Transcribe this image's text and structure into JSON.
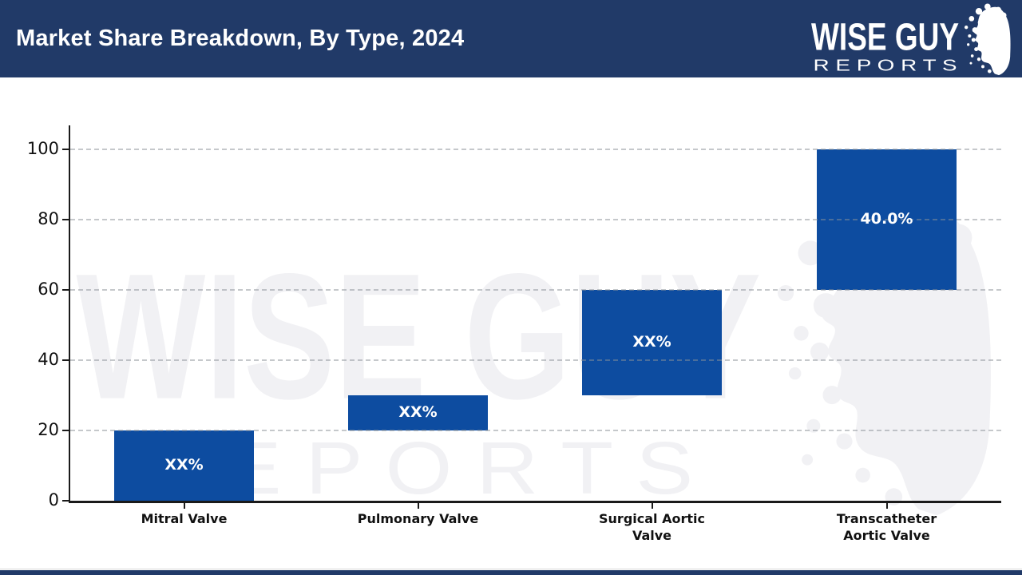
{
  "header": {
    "title": "Market Share Breakdown, By Type, 2024",
    "brand": {
      "line1": "WISE GUY",
      "line2": "R E P O R T S"
    }
  },
  "watermark": {
    "line1": "WISE GUY",
    "line2": "R E P O R T S"
  },
  "colors": {
    "header_bg": "#213a68",
    "bar": "#0d4ca0",
    "bar_label": "#ffffff",
    "axis": "#1a1a1a",
    "gridline": "#c4c7cc",
    "watermark": "#f1f1f4",
    "footer_bar": "#213a68"
  },
  "chart_data": {
    "type": "bar",
    "subtype": "waterfall",
    "title": "Market Share Breakdown, By Type, 2024",
    "xlabel": "",
    "ylabel": "",
    "ylim": [
      0,
      100
    ],
    "yticks": [
      0,
      20,
      40,
      60,
      80,
      100
    ],
    "grid": "horizontal dashed, drawn above bars",
    "legend": "none",
    "categories": [
      "Mitral Valve",
      "Pulmonary Valve",
      "Surgical Aortic Valve",
      "Transcatheter Aortic Valve"
    ],
    "bars": [
      {
        "category": "Mitral Valve",
        "lines": [
          "Mitral Valve"
        ],
        "start": 0,
        "end": 20,
        "value_label": "XX%"
      },
      {
        "category": "Pulmonary Valve",
        "lines": [
          "Pulmonary Valve"
        ],
        "start": 20,
        "end": 30,
        "value_label": "XX%"
      },
      {
        "category": "Surgical Aortic Valve",
        "lines": [
          "Surgical Aortic",
          "Valve"
        ],
        "start": 30,
        "end": 60,
        "value_label": "XX%"
      },
      {
        "category": "Transcatheter Aortic Valve",
        "lines": [
          "Transcatheter",
          "Aortic Valve"
        ],
        "start": 60,
        "end": 100,
        "value_label": "40.0%"
      }
    ]
  }
}
